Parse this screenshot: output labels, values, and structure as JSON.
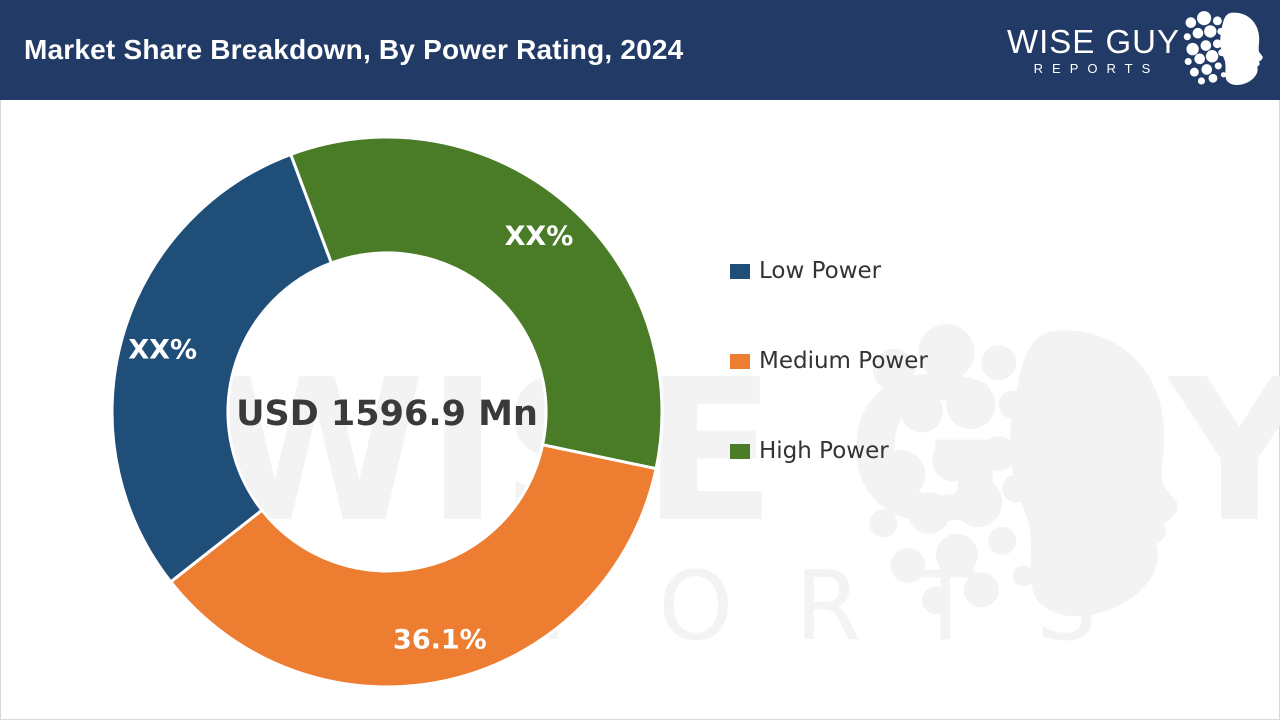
{
  "header": {
    "title": "Market Share Breakdown, By Power Rating, 2024",
    "bg_color": "#213a66",
    "logo": {
      "line1": "WISE GUY",
      "line2": "REPORTS"
    }
  },
  "watermark": {
    "line1": "WISE GUY",
    "line2": "REPORTS"
  },
  "chart_data": {
    "type": "pie",
    "title": "Market Share Breakdown, By Power Rating, 2024",
    "donut": true,
    "center_label": "USD 1596.9 Mn",
    "start_angle_deg": -20.5,
    "rotation": "clockwise",
    "segments": [
      {
        "label": "High Power",
        "value_pct": 34.0,
        "display": "XX%",
        "color": "#4a7c28"
      },
      {
        "label": "Medium Power",
        "value_pct": 36.1,
        "display": "36.1%",
        "color": "#ed7d31"
      },
      {
        "label": "Low Power",
        "value_pct": 29.9,
        "display": "XX%",
        "color": "#1f4e79"
      }
    ]
  },
  "legend": {
    "items": [
      {
        "label": "Low Power",
        "color": "#1f4e79"
      },
      {
        "label": "Medium Power",
        "color": "#ed7d31"
      },
      {
        "label": "High Power",
        "color": "#4a7c28"
      }
    ]
  },
  "colors": {
    "header_bg": "#213a66",
    "watermark": "#f3f3f4",
    "body_border": "#d9d9d9",
    "center_text": "#3a3a3a"
  }
}
